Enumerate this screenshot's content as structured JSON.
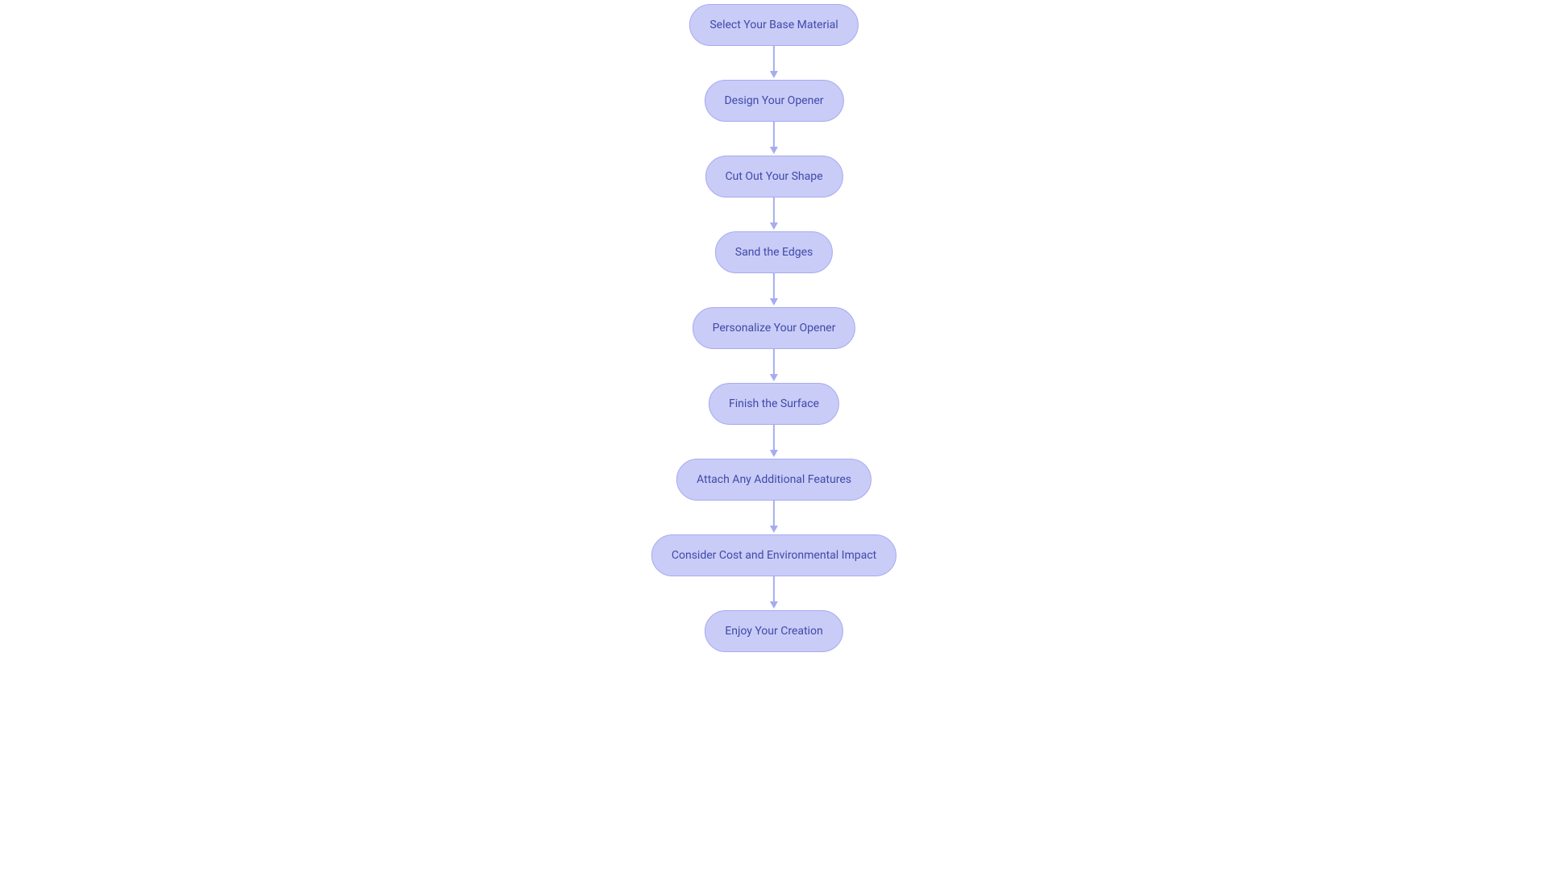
{
  "flowchart": {
    "type": "flowchart",
    "orientation": "vertical",
    "background_color": "#ffffff",
    "node_fill": "#c9ccf7",
    "node_border": "#a7abef",
    "node_border_radius": 999,
    "text_color": "#3f4aa8",
    "font_size": 14,
    "arrow_color": "#a7abef",
    "arrow_line_width": 1.5,
    "node_padding_x": 24,
    "node_padding_y": 16,
    "node_min_height": 52,
    "arrow_gap": 42,
    "nodes": [
      {
        "id": "n1",
        "label": "Select Your Base Material"
      },
      {
        "id": "n2",
        "label": "Design Your Opener"
      },
      {
        "id": "n3",
        "label": "Cut Out Your Shape"
      },
      {
        "id": "n4",
        "label": "Sand the Edges"
      },
      {
        "id": "n5",
        "label": "Personalize Your Opener"
      },
      {
        "id": "n6",
        "label": "Finish the Surface"
      },
      {
        "id": "n7",
        "label": "Attach Any Additional Features"
      },
      {
        "id": "n8",
        "label": "Consider Cost and Environmental Impact"
      },
      {
        "id": "n9",
        "label": "Enjoy Your Creation"
      }
    ],
    "edges": [
      {
        "from": "n1",
        "to": "n2"
      },
      {
        "from": "n2",
        "to": "n3"
      },
      {
        "from": "n3",
        "to": "n4"
      },
      {
        "from": "n4",
        "to": "n5"
      },
      {
        "from": "n5",
        "to": "n6"
      },
      {
        "from": "n6",
        "to": "n7"
      },
      {
        "from": "n7",
        "to": "n8"
      },
      {
        "from": "n8",
        "to": "n9"
      }
    ]
  }
}
